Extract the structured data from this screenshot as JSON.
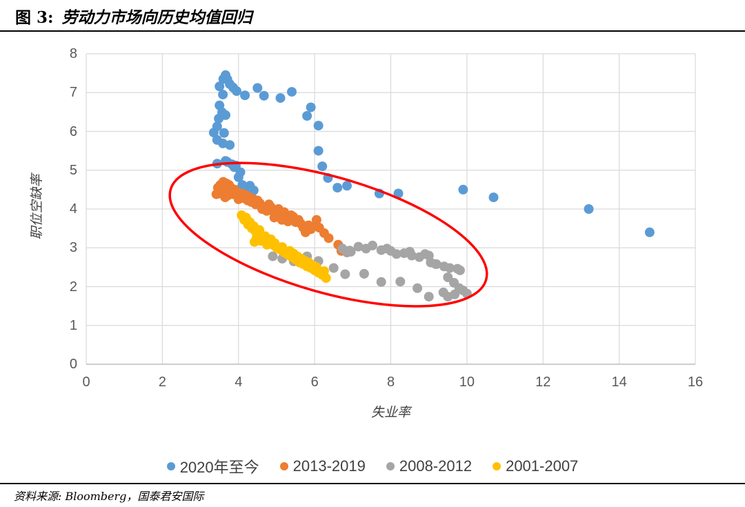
{
  "title": {
    "prefix": "图 3:",
    "text": "劳动力市场向历史均值回归"
  },
  "source": {
    "text": "资料来源: Bloomberg，国泰君安国际"
  },
  "chart_data": {
    "type": "scatter",
    "title": "劳动力市场向历史均值回归",
    "xlabel": "失业率",
    "ylabel": "职位空缺率",
    "xlim": [
      0,
      16
    ],
    "ylim": [
      0,
      8
    ],
    "xticks": [
      0,
      2,
      4,
      6,
      8,
      10,
      12,
      14,
      16
    ],
    "yticks": [
      0,
      1,
      2,
      3,
      4,
      5,
      6,
      7,
      8
    ],
    "grid": true,
    "grid_color": "#D9D9D9",
    "axis_line_color": "#BFBFBF",
    "marker_radius": 7,
    "legend_position": "bottom",
    "annotation": {
      "type": "ellipse",
      "cx": 6.36,
      "cy": 3.34,
      "rx": 4.31,
      "ry": 1.49,
      "angle": 16,
      "color": "#FF0000",
      "stroke_width": 3.5
    },
    "series": [
      {
        "id": "2020-to-now",
        "name": "2020年至今",
        "color": "#5B9BD5",
        "points": [
          [
            3.5,
            4.4
          ],
          [
            4.4,
            4.48
          ],
          [
            14.8,
            3.4
          ],
          [
            13.2,
            4.0
          ],
          [
            10.7,
            4.3
          ],
          [
            9.9,
            4.5
          ],
          [
            8.2,
            4.4
          ],
          [
            7.7,
            4.4
          ],
          [
            6.85,
            4.6
          ],
          [
            6.6,
            4.55
          ],
          [
            6.35,
            4.8
          ],
          [
            6.2,
            5.1
          ],
          [
            6.1,
            5.5
          ],
          [
            6.1,
            6.15
          ],
          [
            5.9,
            6.62
          ],
          [
            5.8,
            6.4
          ],
          [
            5.4,
            7.02
          ],
          [
            5.1,
            6.86
          ],
          [
            4.67,
            6.92
          ],
          [
            4.5,
            7.12
          ],
          [
            4.17,
            6.93
          ],
          [
            3.95,
            7.04
          ],
          [
            3.86,
            7.13
          ],
          [
            3.77,
            7.22
          ],
          [
            3.71,
            7.34
          ],
          [
            3.66,
            7.45
          ],
          [
            3.6,
            7.35
          ],
          [
            3.5,
            7.16
          ],
          [
            3.59,
            6.95
          ],
          [
            3.5,
            6.67
          ],
          [
            3.57,
            6.49
          ],
          [
            3.66,
            6.42
          ],
          [
            3.48,
            6.33
          ],
          [
            3.44,
            6.13
          ],
          [
            3.35,
            5.97
          ],
          [
            3.62,
            5.96
          ],
          [
            3.44,
            5.78
          ],
          [
            3.59,
            5.69
          ],
          [
            3.77,
            5.65
          ],
          [
            3.66,
            5.24
          ],
          [
            3.44,
            5.17
          ],
          [
            3.71,
            5.21
          ],
          [
            3.83,
            5.15
          ],
          [
            3.93,
            5.12
          ],
          [
            3.89,
            5.08
          ],
          [
            4.05,
            4.95
          ],
          [
            4.0,
            4.82
          ],
          [
            4.1,
            4.62
          ],
          [
            4.22,
            4.46
          ],
          [
            4.3,
            4.6
          ]
        ]
      },
      {
        "id": "2013-2019",
        "name": "2013-2019",
        "color": "#ED7D31",
        "points": [
          [
            6.7,
            2.92
          ],
          [
            6.62,
            3.08
          ],
          [
            6.37,
            3.25
          ],
          [
            6.25,
            3.38
          ],
          [
            6.12,
            3.52
          ],
          [
            6.0,
            3.56
          ],
          [
            6.05,
            3.72
          ],
          [
            5.9,
            3.48
          ],
          [
            5.84,
            3.58
          ],
          [
            5.76,
            3.4
          ],
          [
            5.7,
            3.52
          ],
          [
            5.64,
            3.62
          ],
          [
            5.58,
            3.72
          ],
          [
            5.5,
            3.66
          ],
          [
            5.44,
            3.8
          ],
          [
            5.38,
            3.84
          ],
          [
            5.3,
            3.68
          ],
          [
            5.25,
            3.8
          ],
          [
            5.2,
            3.92
          ],
          [
            5.14,
            3.72
          ],
          [
            5.1,
            3.85
          ],
          [
            5.05,
            4.0
          ],
          [
            5.0,
            3.9
          ],
          [
            4.94,
            3.78
          ],
          [
            4.9,
            3.95
          ],
          [
            4.85,
            4.05
          ],
          [
            4.8,
            4.12
          ],
          [
            4.74,
            3.95
          ],
          [
            4.7,
            4.05
          ],
          [
            4.62,
            4.0
          ],
          [
            4.56,
            4.15
          ],
          [
            4.5,
            4.22
          ],
          [
            4.45,
            4.12
          ],
          [
            4.4,
            4.25
          ],
          [
            4.34,
            4.18
          ],
          [
            4.3,
            4.3
          ],
          [
            4.24,
            4.22
          ],
          [
            4.2,
            4.35
          ],
          [
            4.14,
            4.28
          ],
          [
            4.1,
            4.4
          ],
          [
            4.04,
            4.3
          ],
          [
            4.0,
            4.25
          ],
          [
            3.95,
            4.42
          ],
          [
            3.9,
            4.5
          ],
          [
            3.85,
            4.38
          ],
          [
            3.8,
            4.55
          ],
          [
            3.78,
            4.42
          ],
          [
            3.75,
            4.62
          ],
          [
            3.7,
            4.5
          ],
          [
            3.68,
            4.66
          ],
          [
            3.62,
            4.58
          ],
          [
            3.6,
            4.7
          ],
          [
            3.55,
            4.52
          ],
          [
            3.52,
            4.62
          ],
          [
            3.5,
            4.45
          ],
          [
            3.46,
            4.55
          ],
          [
            3.42,
            4.38
          ],
          [
            3.58,
            4.42
          ],
          [
            3.65,
            4.3
          ],
          [
            3.72,
            4.35
          ]
        ]
      },
      {
        "id": "2008-2012",
        "name": "2008-2012",
        "color": "#A5A5A5",
        "points": [
          [
            4.9,
            2.78
          ],
          [
            5.15,
            2.72
          ],
          [
            5.45,
            2.65
          ],
          [
            5.8,
            2.78
          ],
          [
            6.1,
            2.66
          ],
          [
            6.5,
            2.48
          ],
          [
            6.8,
            2.32
          ],
          [
            7.3,
            2.33
          ],
          [
            7.75,
            2.12
          ],
          [
            8.25,
            2.13
          ],
          [
            8.7,
            1.96
          ],
          [
            9.0,
            1.74
          ],
          [
            9.38,
            1.85
          ],
          [
            9.5,
            1.74
          ],
          [
            9.68,
            1.8
          ],
          [
            9.9,
            1.9
          ],
          [
            10.0,
            1.82
          ],
          [
            9.8,
            1.96
          ],
          [
            9.66,
            2.1
          ],
          [
            9.5,
            2.24
          ],
          [
            9.18,
            2.58
          ],
          [
            9.82,
            2.42
          ],
          [
            9.75,
            2.46
          ],
          [
            9.55,
            2.48
          ],
          [
            9.4,
            2.52
          ],
          [
            9.2,
            2.58
          ],
          [
            9.05,
            2.62
          ],
          [
            9.0,
            2.8
          ],
          [
            8.9,
            2.84
          ],
          [
            8.75,
            2.76
          ],
          [
            8.55,
            2.8
          ],
          [
            8.5,
            2.9
          ],
          [
            8.35,
            2.86
          ],
          [
            8.15,
            2.84
          ],
          [
            8.0,
            2.92
          ],
          [
            7.9,
            2.98
          ],
          [
            7.75,
            2.94
          ],
          [
            7.52,
            3.06
          ],
          [
            7.35,
            2.98
          ],
          [
            7.15,
            3.03
          ],
          [
            6.95,
            2.9
          ],
          [
            6.85,
            2.88
          ],
          [
            6.73,
            2.98
          ],
          [
            6.92,
            2.93
          ]
        ]
      },
      {
        "id": "2001-2007",
        "name": "2001-2007",
        "color": "#FFC000",
        "points": [
          [
            4.08,
            3.84
          ],
          [
            4.15,
            3.72
          ],
          [
            4.2,
            3.78
          ],
          [
            4.25,
            3.6
          ],
          [
            4.3,
            3.66
          ],
          [
            4.35,
            3.5
          ],
          [
            4.4,
            3.56
          ],
          [
            4.45,
            3.42
          ],
          [
            4.5,
            3.35
          ],
          [
            4.55,
            3.46
          ],
          [
            4.6,
            3.28
          ],
          [
            4.65,
            3.2
          ],
          [
            4.7,
            3.3
          ],
          [
            4.8,
            3.15
          ],
          [
            4.9,
            3.08
          ],
          [
            5.0,
            3.0
          ],
          [
            5.1,
            2.95
          ],
          [
            5.2,
            2.88
          ],
          [
            5.3,
            2.82
          ],
          [
            5.4,
            2.76
          ],
          [
            5.5,
            2.7
          ],
          [
            5.55,
            2.78
          ],
          [
            5.6,
            2.62
          ],
          [
            5.7,
            2.58
          ],
          [
            5.75,
            2.66
          ],
          [
            5.8,
            2.52
          ],
          [
            5.9,
            2.48
          ],
          [
            6.0,
            2.42
          ],
          [
            6.05,
            2.5
          ],
          [
            6.1,
            2.36
          ],
          [
            6.2,
            2.3
          ],
          [
            6.25,
            2.4
          ],
          [
            6.3,
            2.22
          ],
          [
            5.95,
            2.55
          ],
          [
            5.85,
            2.62
          ],
          [
            5.65,
            2.72
          ],
          [
            5.45,
            2.85
          ],
          [
            5.35,
            2.92
          ],
          [
            5.15,
            3.02
          ],
          [
            4.95,
            3.12
          ],
          [
            4.85,
            3.22
          ],
          [
            4.75,
            3.08
          ],
          [
            4.58,
            3.18
          ],
          [
            4.48,
            3.28
          ],
          [
            4.42,
            3.15
          ]
        ]
      }
    ]
  }
}
